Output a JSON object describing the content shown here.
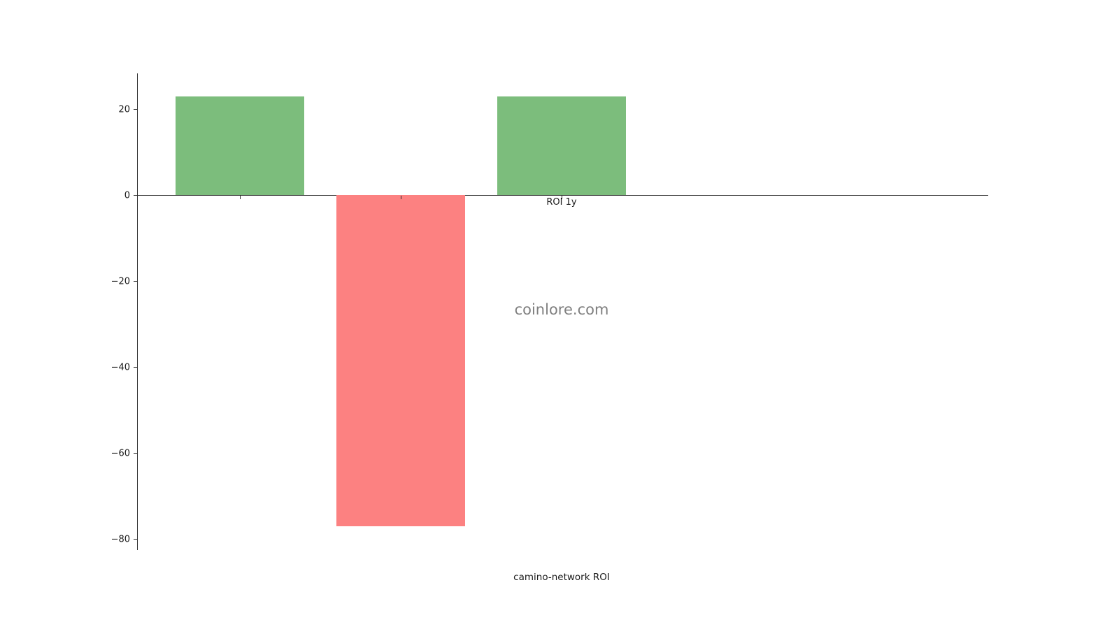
{
  "page": {
    "background_color": "#ffffff"
  },
  "watermark": {
    "text": "coinlore.com",
    "color": "#7f7f7f"
  },
  "chart_data": {
    "type": "bar",
    "title": "",
    "xlabel": "camino-network ROI",
    "ylabel": "",
    "categories": [
      "",
      "",
      "ROI 1y"
    ],
    "values": [
      23,
      -77,
      23
    ],
    "bar_colors": [
      "#7cbd7c",
      "#fc8181",
      "#7cbd7c"
    ],
    "positive_color": "#7cbd7c",
    "negative_color": "#fc8181",
    "ylim": [
      -82.6,
      28.3
    ],
    "yticks": [
      {
        "value": 20,
        "label": "20"
      },
      {
        "value": 0,
        "label": "0"
      },
      {
        "value": -20,
        "label": "−20"
      },
      {
        "value": -40,
        "label": "−40"
      },
      {
        "value": -60,
        "label": "−60"
      },
      {
        "value": -80,
        "label": "−80"
      }
    ],
    "grid": false,
    "legend": null
  }
}
